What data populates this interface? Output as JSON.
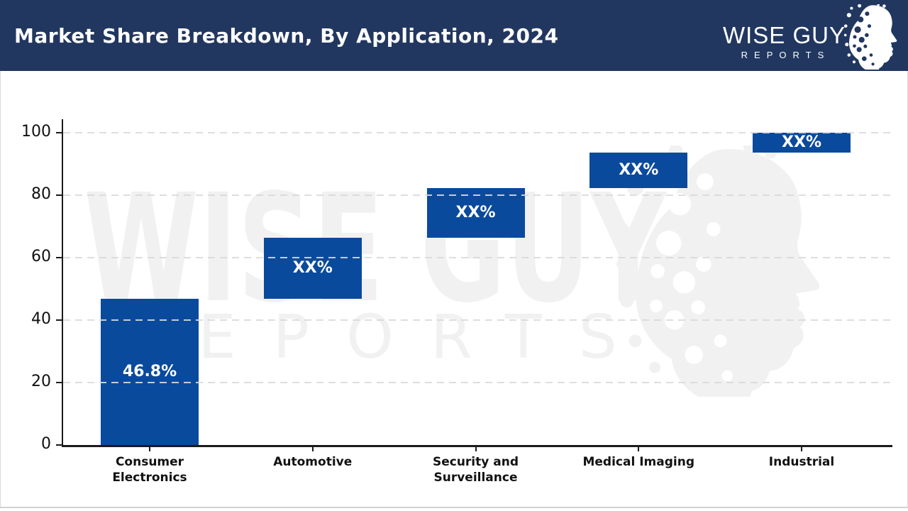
{
  "header": {
    "title": "Market Share Breakdown, By Application, 2024",
    "bg_color": "#213760",
    "logo": {
      "line1": "WISE GUY",
      "line2": "REPORTS"
    }
  },
  "watermark": {
    "line1": "WISE GUY",
    "line2": "REPORTS",
    "color": "#f1f1f2"
  },
  "chart_data": {
    "type": "bar",
    "subtype": "waterfall",
    "title": "Market Share Breakdown, By Application, 2024",
    "categories": [
      "Consumer\nElectronics",
      "Automotive",
      "Security and\nSurveillance",
      "Medical Imaging",
      "Industrial"
    ],
    "series": [
      {
        "name": "Market Share (%)",
        "segments": [
          {
            "category": "Consumer Electronics",
            "start": 0,
            "end": 46.8,
            "label": "46.8%"
          },
          {
            "category": "Automotive",
            "start": 46.8,
            "end": 66.2,
            "label": "XX%"
          },
          {
            "category": "Security and Surveillance",
            "start": 66.2,
            "end": 82.2,
            "label": "XX%"
          },
          {
            "category": "Medical Imaging",
            "start": 82.2,
            "end": 93.6,
            "label": "XX%"
          },
          {
            "category": "Industrial",
            "start": 93.6,
            "end": 100,
            "label": "XX%"
          }
        ]
      }
    ],
    "yticks": [
      0,
      20,
      40,
      60,
      80,
      100
    ],
    "ylim": [
      0,
      105
    ],
    "xlabel": "",
    "ylabel": "",
    "grid": "horizontal dashed",
    "legend": "none",
    "bar_color": "#0a4a9d",
    "bar_label_color": "#ffffff",
    "axis_color": "#1a1a1a",
    "grid_color": "#dadada"
  }
}
